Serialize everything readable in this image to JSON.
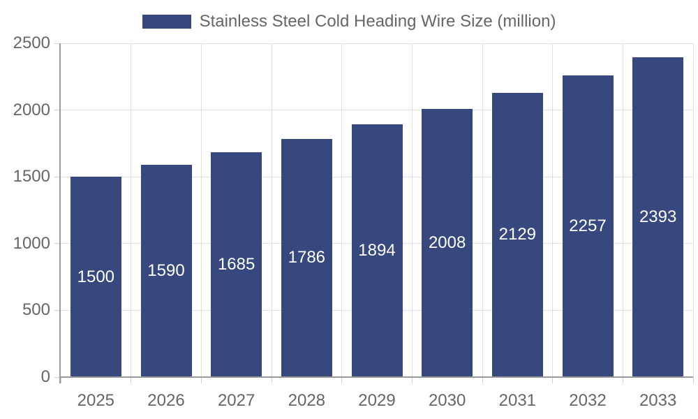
{
  "chart_data": {
    "type": "bar",
    "title": "",
    "legend": "Stainless Steel Cold Heading Wire Size (million)",
    "categories": [
      "2025",
      "2026",
      "2027",
      "2028",
      "2029",
      "2030",
      "2031",
      "2032",
      "2033"
    ],
    "values": [
      1500,
      1590,
      1685,
      1786,
      1894,
      2008,
      2129,
      2257,
      2393
    ],
    "xlabel": "",
    "ylabel": "",
    "ylim": [
      0,
      2500
    ],
    "yticks": [
      0,
      500,
      1000,
      1500,
      2000,
      2500
    ],
    "grid": true,
    "legend_position": "top-center",
    "value_labels": "inside-center",
    "colors": {
      "bar": "#36487d",
      "value_label_text": "#ffffff",
      "axis_text": "#666666",
      "gridline": "#e0e0e0",
      "tick": "#cfcfcf",
      "axis_line": "#9a9a9a",
      "background": "#ffffff"
    }
  }
}
